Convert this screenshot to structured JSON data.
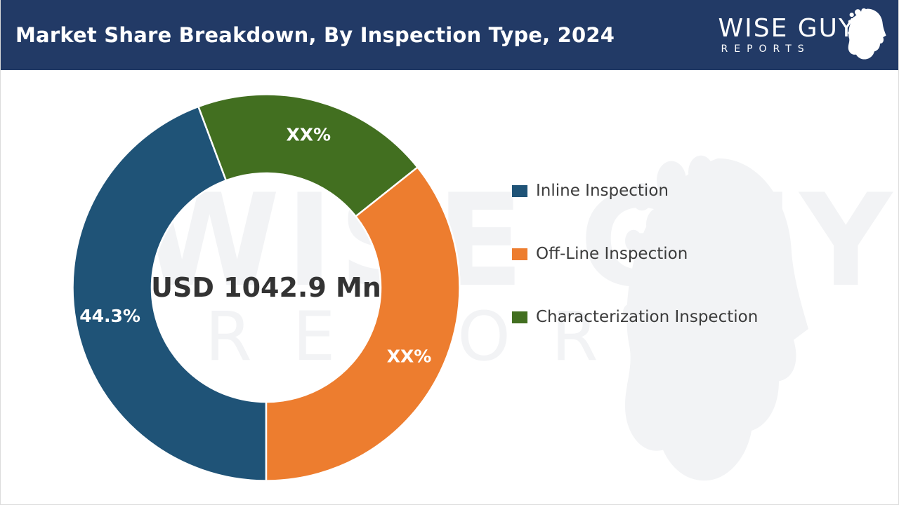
{
  "header": {
    "title": "Market Share Breakdown, By Inspection Type, 2024",
    "logo": {
      "line1": "WISE GUY",
      "line2": "REPORTS"
    }
  },
  "watermark": {
    "line1": "WISE GUY",
    "line2": "REPORTS"
  },
  "chart_data": {
    "type": "pie",
    "donut": true,
    "title": "Market Share Breakdown, By Inspection Type, 2024",
    "center_label": "USD 1042.9 Mn",
    "legend_position": "right",
    "start_angle_deg": 180,
    "draw_order": [
      0,
      2,
      1
    ],
    "segments": [
      {
        "label": "Inline Inspection",
        "display_value": "44.3%",
        "value_pct": 44.3,
        "color": "#1F5377"
      },
      {
        "label": "Off-Line Inspection",
        "display_value": "XX%",
        "value_pct": 35.7,
        "color": "#ED7D2F"
      },
      {
        "label": "Characterization Inspection",
        "display_value": "XX%",
        "value_pct": 20.0,
        "color": "#426F20"
      }
    ]
  },
  "colors": {
    "header_bg": "#223A66",
    "page_bg": "#FFFFFF",
    "title_text": "#FFFFFF",
    "center_text": "#333333",
    "legend_text": "#3B3B3B",
    "slice_label_text": "#FFFFFF",
    "watermark": "#F2F3F5",
    "border": "#DCDCDC"
  }
}
